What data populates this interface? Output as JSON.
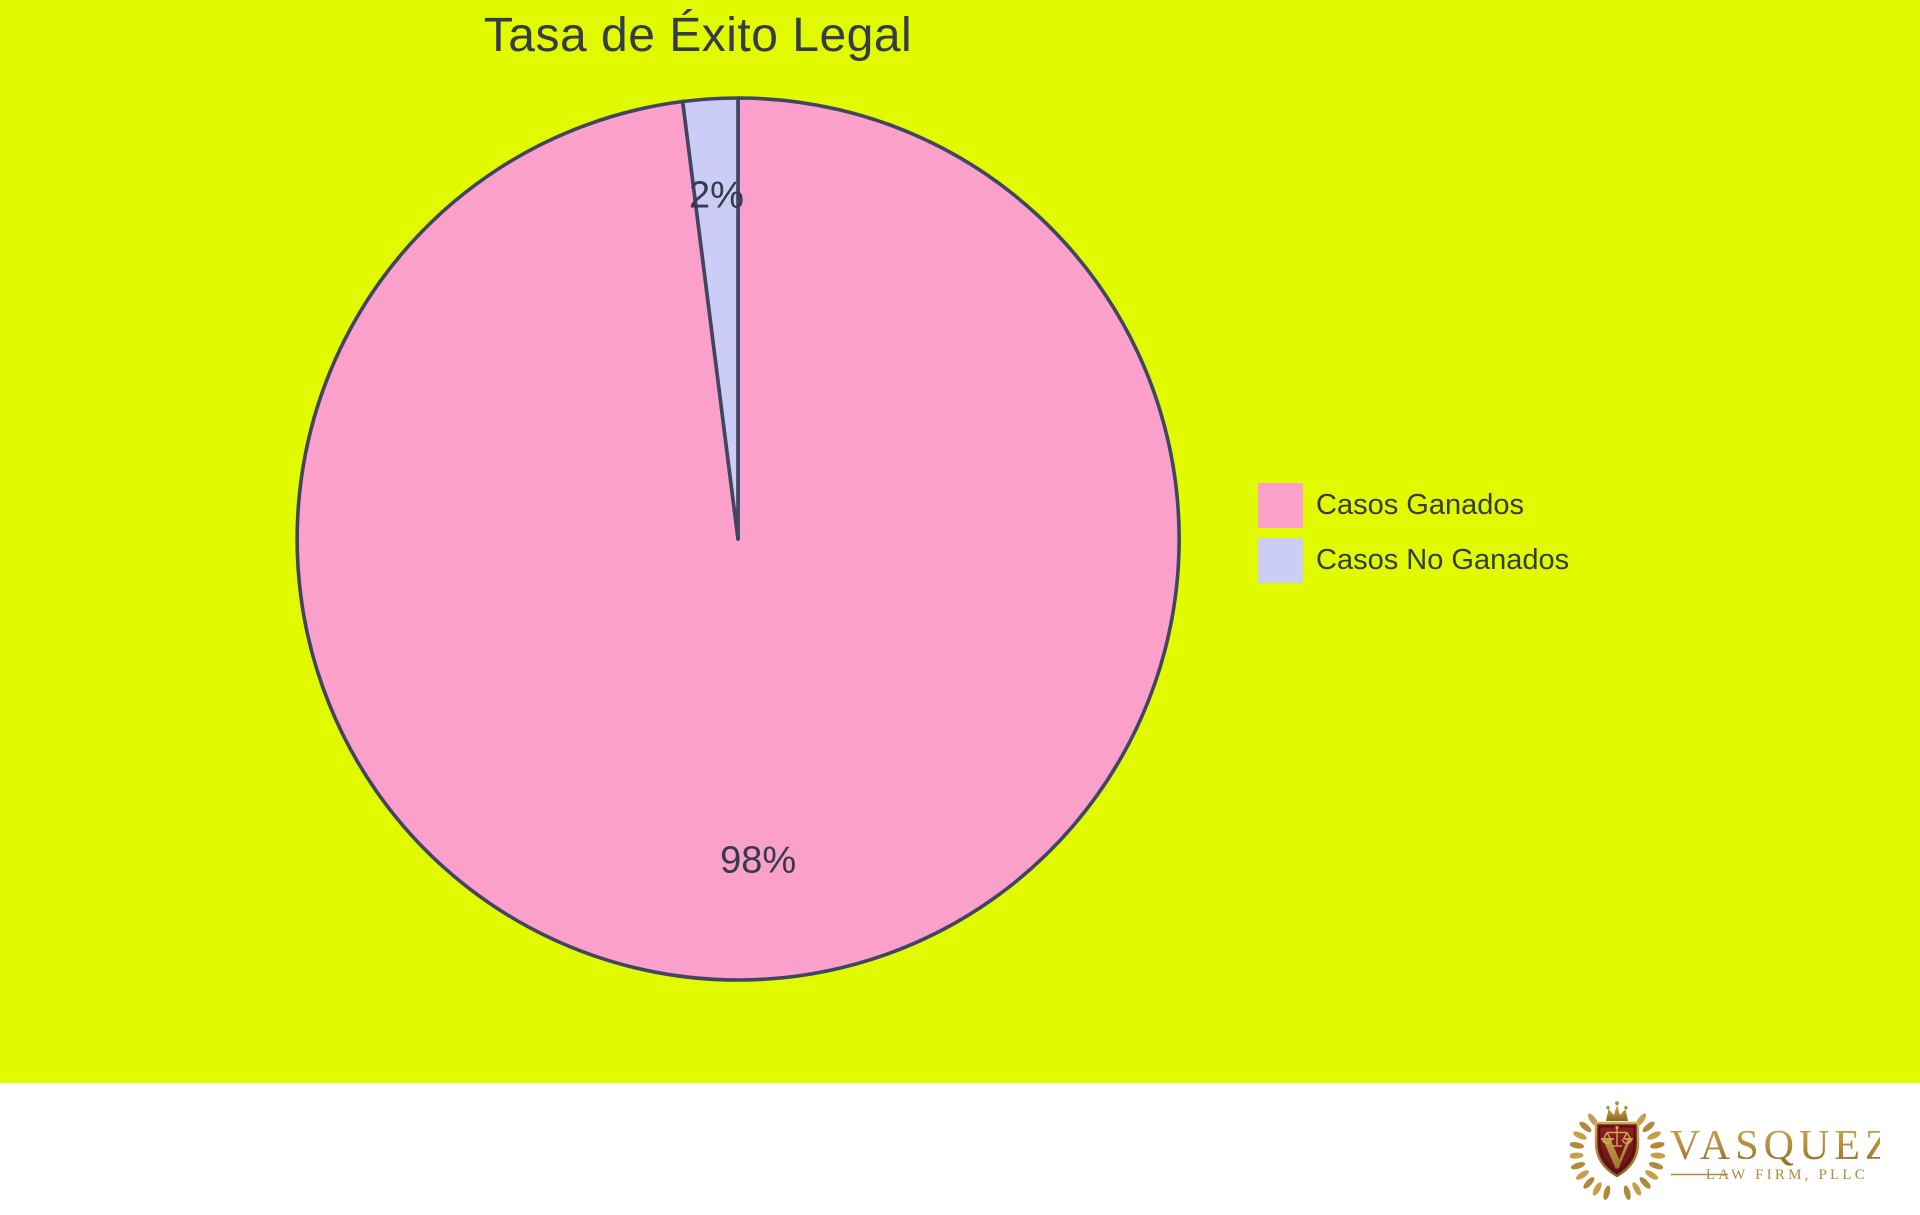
{
  "page": {
    "background": "#E1FA00",
    "footer_background": "#FFFFFF"
  },
  "chart_data": {
    "type": "pie",
    "title": "Tasa de Éxito Legal",
    "labels": [
      "Casos Ganados",
      "Casos No Ganados"
    ],
    "values": [
      98,
      2
    ],
    "data_labels": [
      "98%",
      "2%"
    ],
    "colors": [
      "#FAA0CA",
      "#CBCDF7"
    ],
    "stroke_color": "#414560",
    "label_color": "#363B49",
    "start_angle": "12-oclock",
    "direction": "clockwise",
    "legend_position": "right",
    "grid": false
  },
  "legend": {
    "items": [
      {
        "label": "Casos Ganados",
        "color": "#FAA0CA"
      },
      {
        "label": "Casos No Ganados",
        "color": "#CBCDF7"
      }
    ]
  },
  "footer": {
    "logo": {
      "brand": "VASQUEZ",
      "subtitle": "LAW FIRM, PLLC",
      "monogram": "V"
    }
  }
}
